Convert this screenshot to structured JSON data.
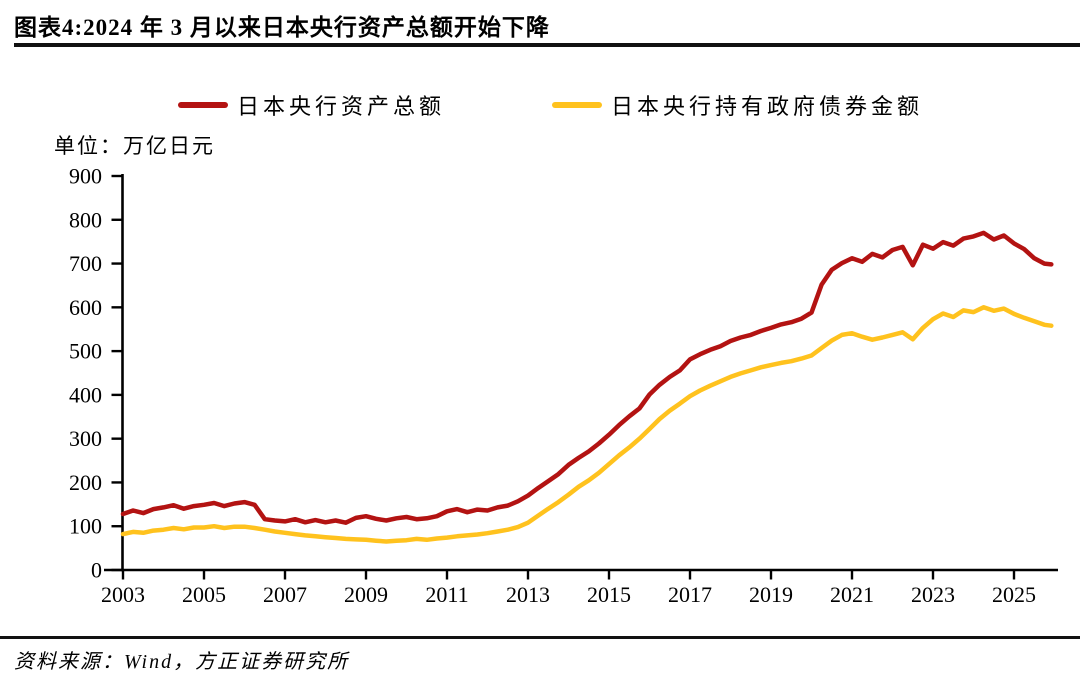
{
  "header": {
    "title": "图表4:2024 年 3 月以来日本央行资产总额开始下降"
  },
  "footer": {
    "source": "资料来源：Wind，方正证券研究所"
  },
  "colors": {
    "axis": "#000000",
    "rule": "#111111",
    "series_red": "#B31312",
    "series_yellow": "#FFC21E"
  },
  "chart_data": {
    "type": "line",
    "title": "图表4:2024 年 3 月以来日本央行资产总额开始下降",
    "unit_label": "单位：万亿日元",
    "legend_position": "top",
    "grid": false,
    "xlim": [
      2003,
      2026.1
    ],
    "ylim": [
      0,
      900
    ],
    "x_ticks": [
      2003,
      2005,
      2007,
      2009,
      2011,
      2013,
      2015,
      2017,
      2019,
      2021,
      2023,
      2025
    ],
    "y_ticks": [
      0,
      100,
      200,
      300,
      400,
      500,
      600,
      700,
      800,
      900
    ],
    "x": [
      2003,
      2003.25,
      2003.5,
      2003.75,
      2004,
      2004.25,
      2004.5,
      2004.75,
      2005,
      2005.25,
      2005.5,
      2005.75,
      2006,
      2006.25,
      2006.5,
      2006.75,
      2007,
      2007.25,
      2007.5,
      2007.75,
      2008,
      2008.25,
      2008.5,
      2008.75,
      2009,
      2009.25,
      2009.5,
      2009.75,
      2010,
      2010.25,
      2010.5,
      2010.75,
      2011,
      2011.25,
      2011.5,
      2011.75,
      2012,
      2012.25,
      2012.5,
      2012.75,
      2013,
      2013.25,
      2013.5,
      2013.75,
      2014,
      2014.25,
      2014.5,
      2014.75,
      2015,
      2015.25,
      2015.5,
      2015.75,
      2016,
      2016.25,
      2016.5,
      2016.75,
      2017,
      2017.25,
      2017.5,
      2017.75,
      2018,
      2018.25,
      2018.5,
      2018.75,
      2019,
      2019.25,
      2019.5,
      2019.75,
      2020,
      2020.25,
      2020.5,
      2020.75,
      2021,
      2021.25,
      2021.5,
      2021.75,
      2022,
      2022.25,
      2022.5,
      2022.75,
      2023,
      2023.25,
      2023.5,
      2023.75,
      2024,
      2024.25,
      2024.5,
      2024.75,
      2025,
      2025.25,
      2025.5,
      2025.75,
      2025.92
    ],
    "series": [
      {
        "name": "日本央行资产总额",
        "color": "#B31312",
        "values": [
          128,
          136,
          130,
          139,
          143,
          148,
          140,
          146,
          149,
          153,
          146,
          152,
          155,
          149,
          116,
          113,
          111,
          116,
          109,
          114,
          109,
          113,
          108,
          119,
          123,
          117,
          113,
          118,
          121,
          116,
          118,
          123,
          134,
          139,
          132,
          138,
          136,
          143,
          147,
          157,
          170,
          187,
          203,
          219,
          240,
          256,
          271,
          289,
          309,
          331,
          351,
          369,
          401,
          423,
          441,
          456,
          481,
          493,
          503,
          511,
          523,
          531,
          537,
          546,
          553,
          561,
          566,
          574,
          588,
          652,
          686,
          701,
          712,
          704,
          722,
          714,
          731,
          738,
          696,
          743,
          734,
          749,
          741,
          757,
          762,
          770,
          755,
          764,
          746,
          733,
          712,
          700,
          698
        ]
      },
      {
        "name": "日本央行持有政府债券金额",
        "color": "#FFC21E",
        "values": [
          82,
          87,
          85,
          90,
          92,
          96,
          93,
          97,
          97,
          100,
          96,
          99,
          99,
          96,
          92,
          88,
          85,
          82,
          79,
          77,
          75,
          73,
          71,
          70,
          69,
          67,
          65,
          67,
          68,
          71,
          69,
          72,
          74,
          77,
          79,
          81,
          84,
          88,
          92,
          98,
          108,
          124,
          140,
          155,
          172,
          190,
          205,
          222,
          242,
          262,
          280,
          300,
          322,
          345,
          364,
          380,
          397,
          410,
          421,
          431,
          441,
          449,
          456,
          463,
          468,
          473,
          477,
          483,
          490,
          507,
          524,
          537,
          541,
          533,
          526,
          531,
          537,
          543,
          527,
          553,
          573,
          586,
          578,
          593,
          589,
          600,
          592,
          597,
          585,
          576,
          568,
          560,
          558
        ]
      }
    ]
  }
}
